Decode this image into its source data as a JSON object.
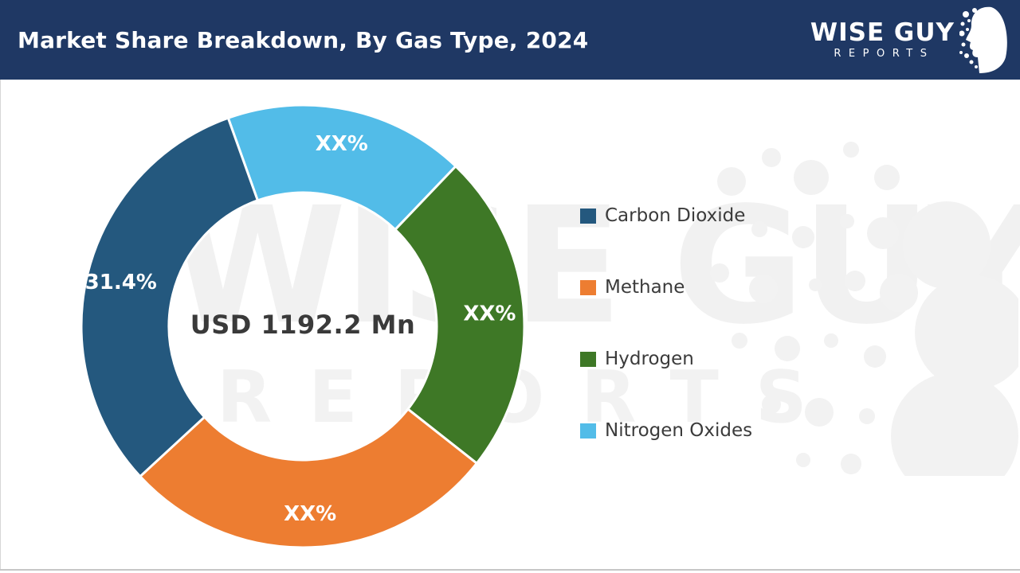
{
  "header": {
    "title": "Market Share Breakdown, By Gas Type, 2024",
    "bg_color": "#1F3864",
    "logo": {
      "name_line": "WISE GUY",
      "sub_line": "REPORTS"
    }
  },
  "chart_data": {
    "type": "pie",
    "subtype": "donut",
    "title": "Market Share Breakdown, By Gas Type, 2024",
    "center_label": "USD 1192.2 Mn",
    "start_angle_deg": -19.7,
    "clockwise": true,
    "outer_radius_px": 278,
    "inner_radius_px": 168,
    "segments": [
      {
        "label": "Nitrogen Oxides",
        "value_label": "XX%",
        "percent": 17.6,
        "color": "#52BCE8"
      },
      {
        "label": "Hydrogen",
        "value_label": "XX%",
        "percent": 23.5,
        "color": "#3E7826"
      },
      {
        "label": "Methane",
        "value_label": "XX%",
        "percent": 27.5,
        "color": "#ED7D31"
      },
      {
        "label": "Carbon Dioxide",
        "value_label": "31.4%",
        "percent": 31.4,
        "color": "#24587E"
      }
    ],
    "legend_order": [
      "Carbon Dioxide",
      "Methane",
      "Hydrogen",
      "Nitrogen Oxides"
    ],
    "legend_position": "right"
  },
  "watermark": {
    "line1": "WISE GUY",
    "line2": "REPORTS"
  }
}
